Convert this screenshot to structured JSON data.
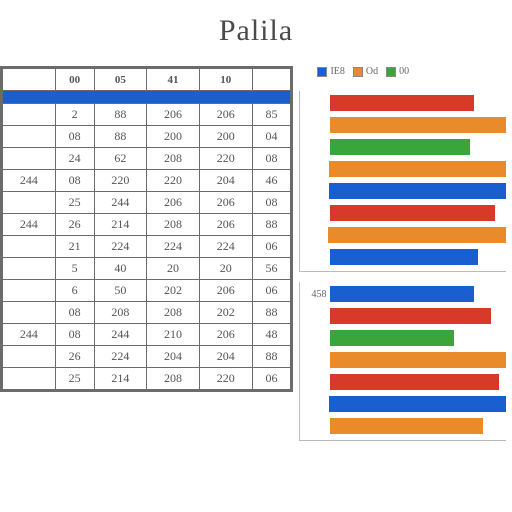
{
  "title": "Palila",
  "text_color": "#4a4a4a",
  "border_color": "#6b6b6b",
  "gap_color": "#1a5fd0",
  "table": {
    "columns": [
      "",
      "00",
      "05",
      "41",
      "10",
      ""
    ],
    "rows": [
      [
        "",
        "2",
        "88",
        "206",
        "206",
        "85"
      ],
      [
        "",
        "08",
        "88",
        "200",
        "200",
        "04"
      ],
      [
        "",
        "24",
        "62",
        "208",
        "220",
        "08"
      ],
      [
        "244",
        "08",
        "220",
        "220",
        "204",
        "46"
      ],
      [
        "",
        "25",
        "244",
        "206",
        "206",
        "08"
      ],
      [
        "244",
        "26",
        "214",
        "208",
        "206",
        "88"
      ],
      [
        "",
        "21",
        "224",
        "224",
        "224",
        "06"
      ],
      [
        "",
        "5",
        "40",
        "20",
        "20",
        "56"
      ],
      [
        "",
        "6",
        "50",
        "202",
        "206",
        "06"
      ],
      [
        "",
        "08",
        "208",
        "208",
        "202",
        "88"
      ],
      [
        "244",
        "08",
        "244",
        "210",
        "206",
        "48"
      ],
      [
        "",
        "26",
        "224",
        "204",
        "204",
        "88"
      ],
      [
        "",
        "25",
        "214",
        "208",
        "220",
        "06"
      ]
    ]
  },
  "bar_palette": {
    "blue": "#1a5fd0",
    "red": "#d83a2a",
    "orange": "#e98b2a",
    "green": "#3aa53a"
  },
  "legend": [
    {
      "label": "IE8",
      "color": "#1a5fd0"
    },
    {
      "label": "Od",
      "color": "#e98b2a"
    },
    {
      "label": "00",
      "color": "#3aa53a"
    }
  ],
  "chart1": {
    "max": 100,
    "rows": [
      {
        "label": "",
        "color": "red",
        "value": 70
      },
      {
        "label": "",
        "color": "orange",
        "value": 88
      },
      {
        "label": "",
        "color": "green",
        "value": 68
      },
      {
        "label": "",
        "color": "orange",
        "value": 90
      },
      {
        "label": "",
        "color": "blue",
        "value": 92
      },
      {
        "label": "",
        "color": "red",
        "value": 80
      },
      {
        "label": "",
        "color": "orange",
        "value": 94
      },
      {
        "label": "",
        "color": "blue",
        "value": 72
      }
    ]
  },
  "chart2": {
    "max": 100,
    "rows": [
      {
        "label": "458",
        "color": "blue",
        "value": 70
      },
      {
        "label": "",
        "color": "red",
        "value": 78
      },
      {
        "label": "",
        "color": "green",
        "value": 60
      },
      {
        "label": "",
        "color": "orange",
        "value": 86
      },
      {
        "label": "",
        "color": "red",
        "value": 82
      },
      {
        "label": "",
        "color": "blue",
        "value": 90
      },
      {
        "label": "",
        "color": "orange",
        "value": 74
      }
    ]
  }
}
